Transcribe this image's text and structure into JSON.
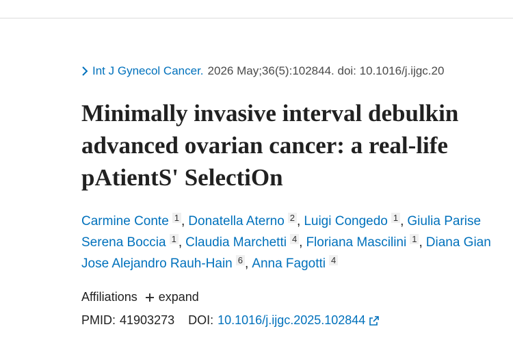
{
  "citation": {
    "journal": "Int J Gynecol Cancer.",
    "details": "2026 May;36(5):102844. doi: 10.1016/j.ijgc.20"
  },
  "title_lines": [
    "Minimally invasive interval debulkin",
    "advanced ovarian cancer: a real-life",
    "pAtientS' SelectiOn"
  ],
  "separator": ",",
  "author_rows": [
    [
      {
        "name": "Carmine Conte",
        "aff": "1"
      },
      {
        "name": "Donatella Aterno",
        "aff": "2"
      },
      {
        "name": "Luigi Congedo",
        "aff": "1"
      },
      {
        "name": "Giulia Parise"
      }
    ],
    [
      {
        "name": "Serena Boccia",
        "aff": "1"
      },
      {
        "name": "Claudia Marchetti",
        "aff": "4"
      },
      {
        "name": "Floriana Mascilini",
        "aff": "1"
      },
      {
        "name": "Diana Gian"
      }
    ],
    [
      {
        "name": "Jose Alejandro Rauh-Hain",
        "aff": "6"
      },
      {
        "name": "Anna Fagotti",
        "aff": "4"
      }
    ]
  ],
  "affiliations": {
    "label": "Affiliations",
    "expand": "expand"
  },
  "ids": {
    "pmid_label": "PMID:",
    "pmid": "41903273",
    "doi_label": "DOI:",
    "doi": "10.1016/j.ijgc.2025.102844"
  }
}
